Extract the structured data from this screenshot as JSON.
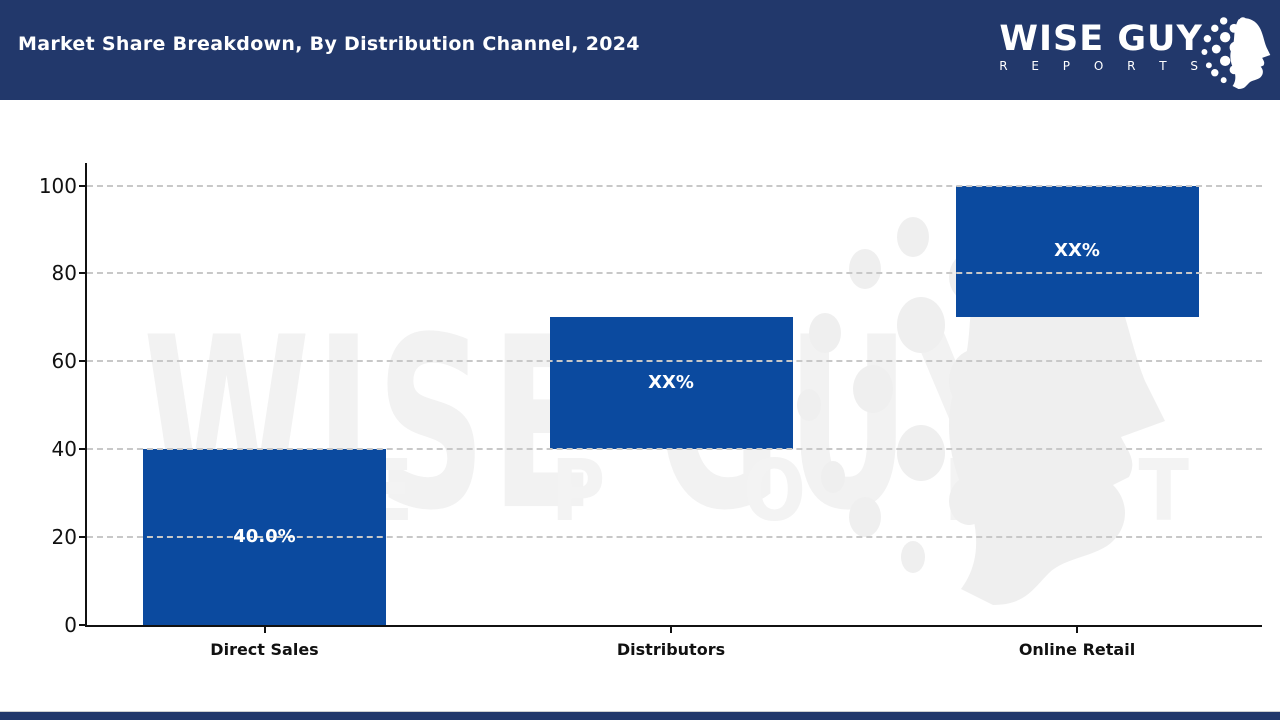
{
  "header": {
    "title": "Market Share Breakdown, By Distribution Channel, 2024",
    "bg_color": "#22386b",
    "logo": {
      "wordmark": "WISE GUY",
      "subtext": "R E P O R T S"
    }
  },
  "chart_data": {
    "type": "bar",
    "variant": "floating-segment-waterfall",
    "title": "Market Share Breakdown, By Distribution Channel, 2024",
    "categories": [
      "Direct Sales",
      "Distributors",
      "Online Retail"
    ],
    "bars": [
      {
        "category": "Direct Sales",
        "start": 0,
        "end": 40,
        "label": "40.0%"
      },
      {
        "category": "Distributors",
        "start": 40,
        "end": 70,
        "label": "XX%"
      },
      {
        "category": "Online Retail",
        "start": 70,
        "end": 100,
        "label": "XX%"
      }
    ],
    "yticks": [
      0,
      20,
      40,
      60,
      80,
      100
    ],
    "ylim": [
      0,
      105
    ],
    "grid": {
      "axis": "y",
      "style": "dashed",
      "color": "#c8c8c8"
    },
    "bar_color": "#0b4a9f",
    "value_label_color": "#ffffff",
    "legend": "none"
  },
  "watermark": {
    "line1": "WISE GUY",
    "line2": "R E P O R T S"
  },
  "footer": {
    "bg_color": "#22386b"
  }
}
